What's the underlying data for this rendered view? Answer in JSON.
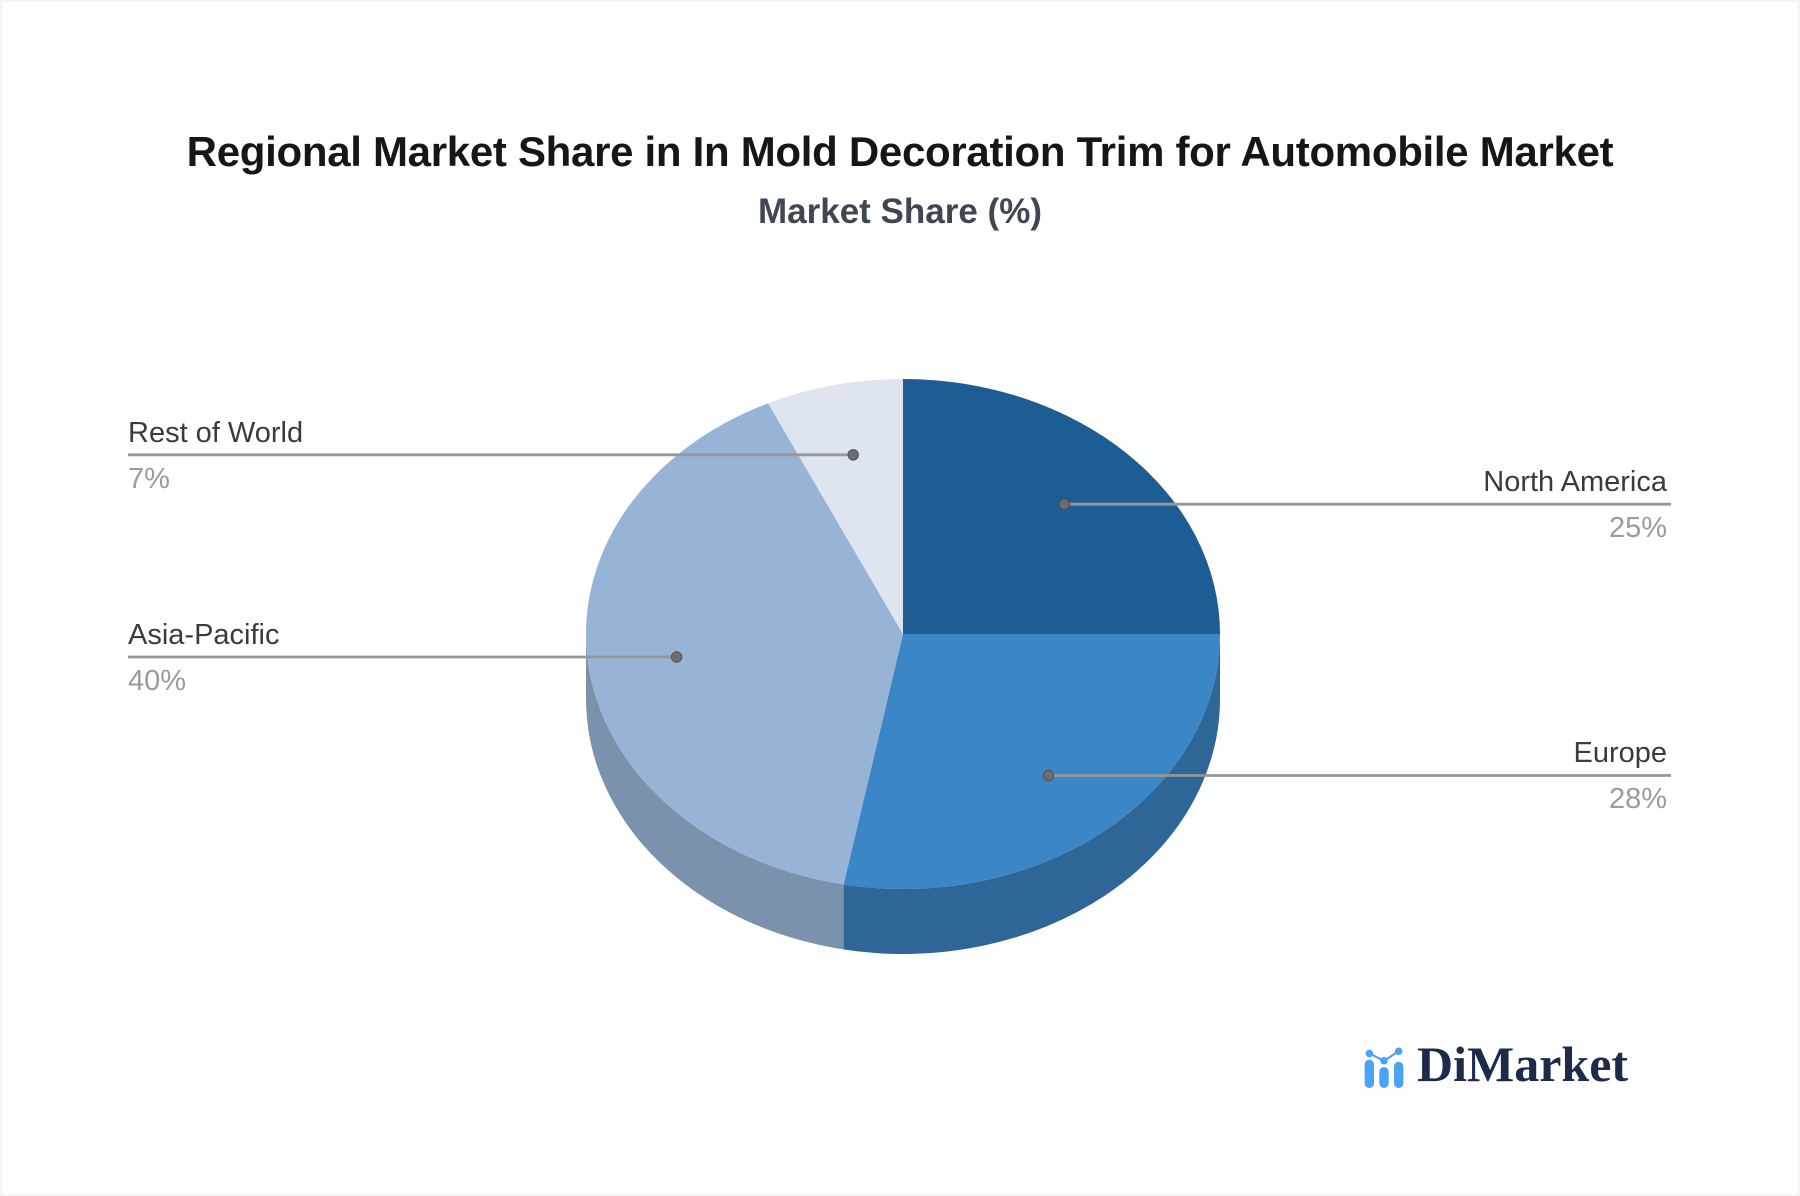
{
  "page": {
    "background": "#ffffff",
    "edge_border_color": "#f2f4f8"
  },
  "header": {
    "title": "Regional Market Share in In Mold Decoration Trim for Automobile Market",
    "subtitle": "Market Share (%)",
    "title_color": "#161616",
    "subtitle_color": "#3f4754"
  },
  "chart_data": {
    "type": "pie",
    "title": "Regional Market Share in In Mold Decoration Trim for Automobile Market",
    "subtitle": "Market Share (%)",
    "unit": "%",
    "categories": [
      "North America",
      "Europe",
      "Asia-Pacific",
      "Rest of World"
    ],
    "values": [
      25,
      28,
      40,
      7
    ],
    "display_values": [
      "25%",
      "28%",
      "40%",
      "7%"
    ],
    "colors": [
      "#1e5c94",
      "#3b86c7",
      "#97b4d6",
      "#dfe5ee"
    ],
    "side_colors": [
      "#17497a",
      "#2d6697",
      "#7a92ab",
      "#b9c4d3"
    ],
    "label_sides": [
      "right",
      "right",
      "left",
      "left"
    ],
    "start_at": "top",
    "direction": "clockwise",
    "effect": "3d-depth",
    "legend_position": "none-leader-line-labels",
    "leader_line_color": "#979797",
    "leader_dot_color": "#6d6d6d",
    "label_color": "#3b3b3b",
    "value_color": "#9b9b9b"
  },
  "logo": {
    "text": "DiMarket",
    "text_color": "#1c2b4a",
    "icon": "bar-chart-icon",
    "icon_color": "#4ba3f3"
  }
}
